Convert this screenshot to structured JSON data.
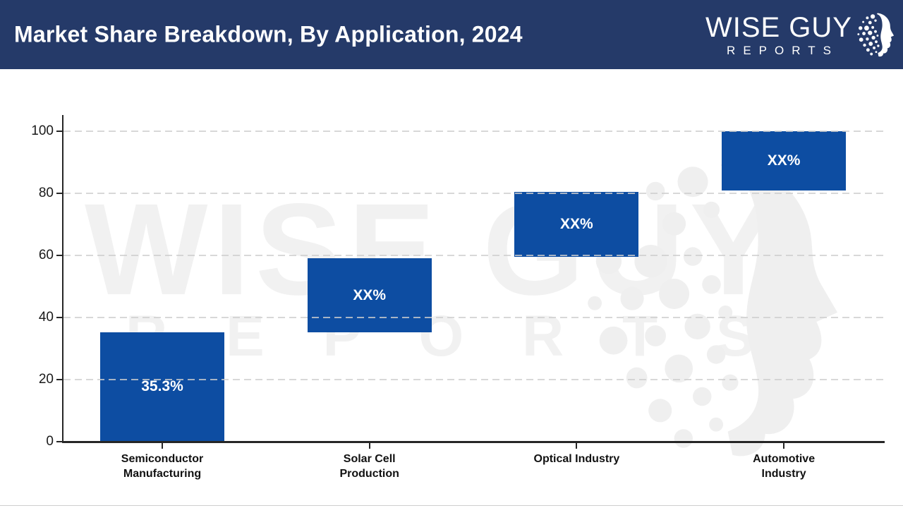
{
  "header": {
    "title": "Market Share Breakdown, By Application, 2024",
    "logo": {
      "wordmark": "WISE GUY",
      "subtitle": "REPORTS"
    }
  },
  "watermark": {
    "wordmark": "WISE GUY",
    "subtitle": "R E P O R T S"
  },
  "colors": {
    "header_bg": "#253a69",
    "bar": "#0d4da2",
    "bar_label": "#ffffff",
    "axis": "#262626",
    "gridline": "#d4d4d4",
    "watermark": "#f1f1f1"
  },
  "chart_data": {
    "type": "bar",
    "subtype": "waterfall",
    "title": "Market Share Breakdown, By Application, 2024",
    "categories": [
      "Semiconductor\nManufacturing",
      "Solar Cell\nProduction",
      "Optical Industry",
      "Automotive\nIndustry"
    ],
    "segments": [
      {
        "category": "Semiconductor Manufacturing",
        "start": 0,
        "end": 35.3,
        "label": "35.3%"
      },
      {
        "category": "Solar Cell Production",
        "start": 35.3,
        "end": 59,
        "label": "XX%"
      },
      {
        "category": "Optical Industry",
        "start": 59.5,
        "end": 80.5,
        "label": "XX%"
      },
      {
        "category": "Automotive Industry",
        "start": 81,
        "end": 100,
        "label": "XX%"
      }
    ],
    "ylim": [
      0,
      100
    ],
    "yticks": [
      0,
      20,
      40,
      60,
      80,
      100
    ],
    "grid": "horizontal-dashed",
    "legend": "none",
    "bar_color": "#0d4da2",
    "bar_label_color": "#ffffff"
  }
}
